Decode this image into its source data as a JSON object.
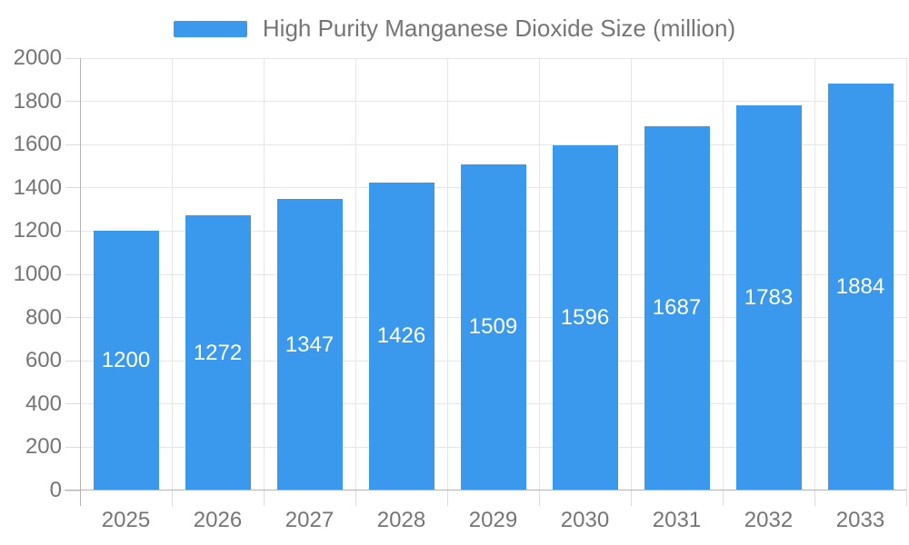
{
  "legend": {
    "label": "High Purity Manganese Dioxide Size (million)"
  },
  "chart_data": {
    "type": "bar",
    "title": "High Purity Manganese Dioxide Size (million)",
    "categories": [
      "2025",
      "2026",
      "2027",
      "2028",
      "2029",
      "2030",
      "2031",
      "2032",
      "2033"
    ],
    "values": [
      1200,
      1272,
      1347,
      1426,
      1509,
      1596,
      1687,
      1783,
      1884
    ],
    "series": [
      {
        "name": "High Purity Manganese Dioxide Size (million)",
        "values": [
          1200,
          1272,
          1347,
          1426,
          1509,
          1596,
          1687,
          1783,
          1884
        ]
      }
    ],
    "xlabel": "",
    "ylabel": "",
    "ylim": [
      0,
      2000
    ],
    "ytick_step": 200,
    "yticks": [
      0,
      200,
      400,
      600,
      800,
      1000,
      1200,
      1400,
      1600,
      1800,
      2000
    ],
    "grid": true,
    "legend_position": "top",
    "bar_labels_visible": true,
    "colors": {
      "bar": "#3A99EC",
      "bar_label": "#FFFFFF",
      "grid": "#E6E6E6",
      "axis": "#B3B3B3",
      "tick": "#DCDCDC",
      "text": "#757575",
      "background": "#FFFFFF"
    }
  }
}
